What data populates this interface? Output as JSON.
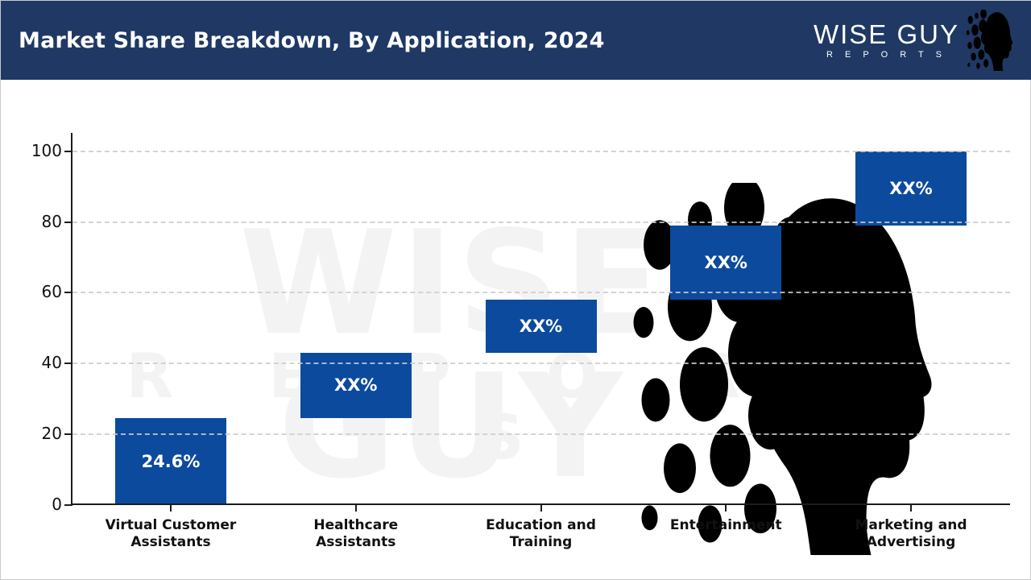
{
  "header": {
    "title": "Market Share Breakdown, By Application, 2024",
    "logo_line1": "WISE GUY",
    "logo_line2": "R E P O R T S"
  },
  "watermark": {
    "line1": "WISE GUY",
    "line2": "R E P O R T S"
  },
  "colors": {
    "header_bg": "#1f3864",
    "bar": "#0c4a9e",
    "axis": "#1c1c1c",
    "grid": "#cbcbcb",
    "watermark": "#f3f3f3"
  },
  "chart_data": {
    "type": "bar",
    "subtype": "floating-waterfall",
    "title": "Market Share Breakdown, By Application, 2024",
    "categories": [
      "Virtual Customer Assistants",
      "Healthcare Assistants",
      "Education and Training",
      "Entertainment",
      "Marketing and Advertising"
    ],
    "category_label_lines": [
      [
        "Virtual Customer",
        "Assistants"
      ],
      [
        "Healthcare",
        "Assistants"
      ],
      [
        "Education and",
        "Training"
      ],
      [
        "Entertainment"
      ],
      [
        "Marketing and",
        "Advertising"
      ]
    ],
    "segments": [
      {
        "category": "Virtual Customer Assistants",
        "start": 0,
        "end": 24.6,
        "label": "24.6%"
      },
      {
        "category": "Healthcare Assistants",
        "start": 24.6,
        "end": 43,
        "label": "XX%"
      },
      {
        "category": "Education and Training",
        "start": 43,
        "end": 58,
        "label": "XX%"
      },
      {
        "category": "Entertainment",
        "start": 58,
        "end": 79,
        "label": "XX%"
      },
      {
        "category": "Marketing and Advertising",
        "start": 79,
        "end": 100,
        "label": "XX%"
      }
    ],
    "ylim": [
      0,
      100
    ],
    "yticks": [
      0,
      20,
      40,
      60,
      80,
      100
    ],
    "xlabel": "",
    "ylabel": "",
    "grid": "horizontal-dashed",
    "legend": "none",
    "bar_color": "#0c4a9e",
    "bar_label_color": "#ffffff"
  }
}
